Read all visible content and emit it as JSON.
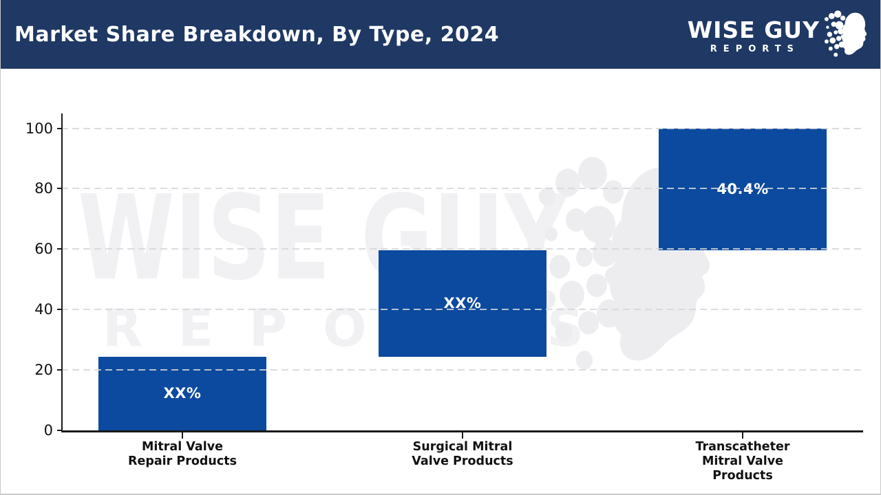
{
  "header": {
    "title": "Market Share Breakdown, By Type, 2024",
    "logo": {
      "wordmark": "WISE GUY",
      "sub": "REPORTS"
    }
  },
  "watermark": {
    "line1": "WISE GUY",
    "line2": "REPORTS"
  },
  "chart_data": {
    "type": "bar",
    "subtype": "floating-segment-breakdown",
    "title": "Market Share Breakdown, By Type, 2024",
    "xlabel": "",
    "ylabel": "",
    "ylim": [
      0,
      105
    ],
    "yticks": [
      0,
      20,
      40,
      60,
      80,
      100
    ],
    "grid": "horizontal-dashed",
    "legend": "none",
    "bar_color": "#0b4a9e",
    "bar_label_color": "#ffffff",
    "categories": [
      {
        "name": "Mitral Valve Repair Products",
        "lines": [
          "Mitral Valve",
          "Repair Products"
        ],
        "from": 0,
        "to": 24.4,
        "label": "XX%"
      },
      {
        "name": "Surgical Mitral Valve Products",
        "lines": [
          "Surgical Mitral",
          "Valve Products"
        ],
        "from": 24.4,
        "to": 59.6,
        "label": "XX%"
      },
      {
        "name": "Transcatheter Mitral Valve Products",
        "lines": [
          "Transcatheter",
          "Mitral Valve",
          "Products"
        ],
        "from": 59.6,
        "to": 100,
        "label": "40.4%"
      }
    ]
  },
  "colors": {
    "header_bg": "#1f3864",
    "bar": "#0b4a9e",
    "grid": "#d6d6da",
    "axis": "#1a1a1a",
    "watermark": "#f1f1f4"
  }
}
